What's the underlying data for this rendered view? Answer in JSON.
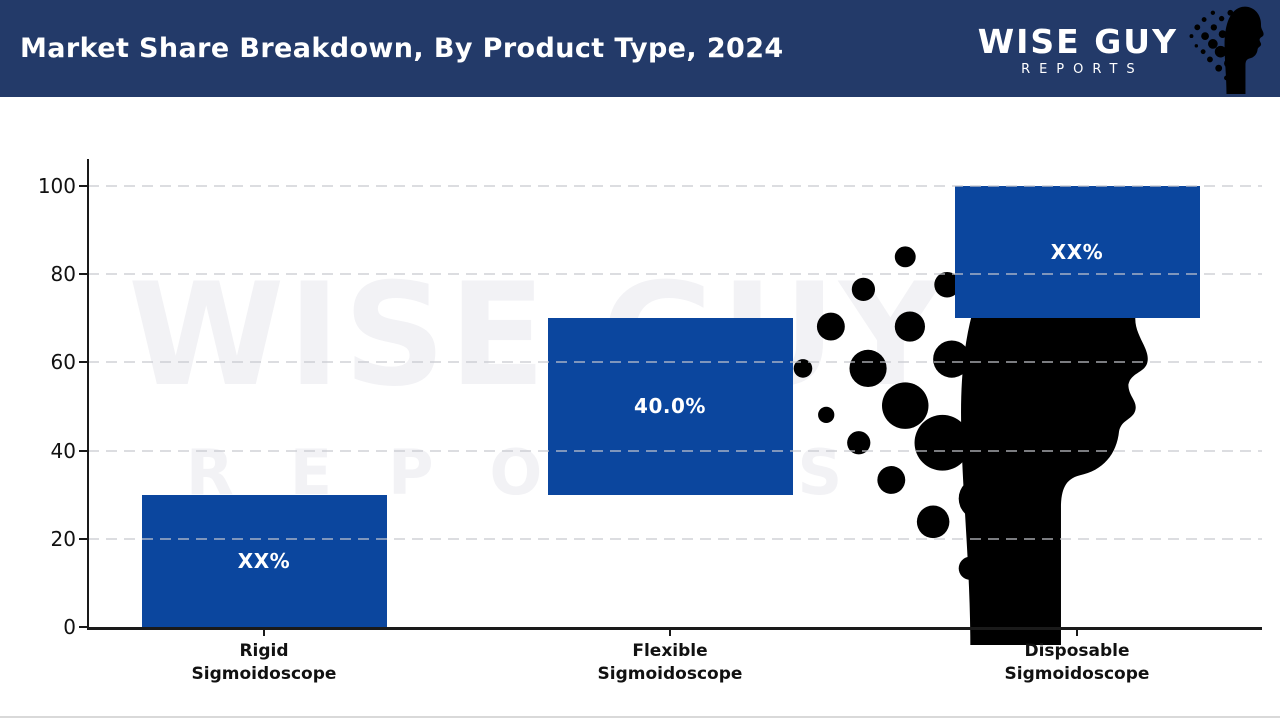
{
  "header": {
    "title": "Market Share Breakdown, By Product Type, 2024",
    "logo": {
      "name": "WISE GUY",
      "sub": "REPORTS"
    }
  },
  "watermark": {
    "line1": "WISE GUY",
    "line2": "REPORTS"
  },
  "colors": {
    "header_bg": "#233a69",
    "bar": "#0b469e",
    "watermark": "#f2f2f5",
    "grid": "#d9d9d9",
    "axis": "#1a1a1a",
    "bar_label_text": "#ffffff"
  },
  "chart_data": {
    "type": "bar",
    "subtype": "floating-waterfall",
    "title": "Market Share Breakdown, By Product Type, 2024",
    "categories": [
      "Rigid\nSigmoidoscope",
      "Flexible\nSigmoidoscope",
      "Disposable\nSigmoidoscope"
    ],
    "segments": [
      {
        "category": "Rigid Sigmoidoscope",
        "start": 0,
        "end": 30,
        "label": "XX%"
      },
      {
        "category": "Flexible Sigmoidoscope",
        "start": 30,
        "end": 70,
        "label": "40.0%"
      },
      {
        "category": "Disposable Sigmoidoscope",
        "start": 70,
        "end": 100,
        "label": "XX%"
      }
    ],
    "yticks": [
      0,
      20,
      40,
      60,
      80,
      100
    ],
    "ylim": [
      0,
      106
    ],
    "xlabel": "",
    "ylabel": "",
    "grid": "horizontal-dashed-over-bars",
    "legend": "none"
  }
}
